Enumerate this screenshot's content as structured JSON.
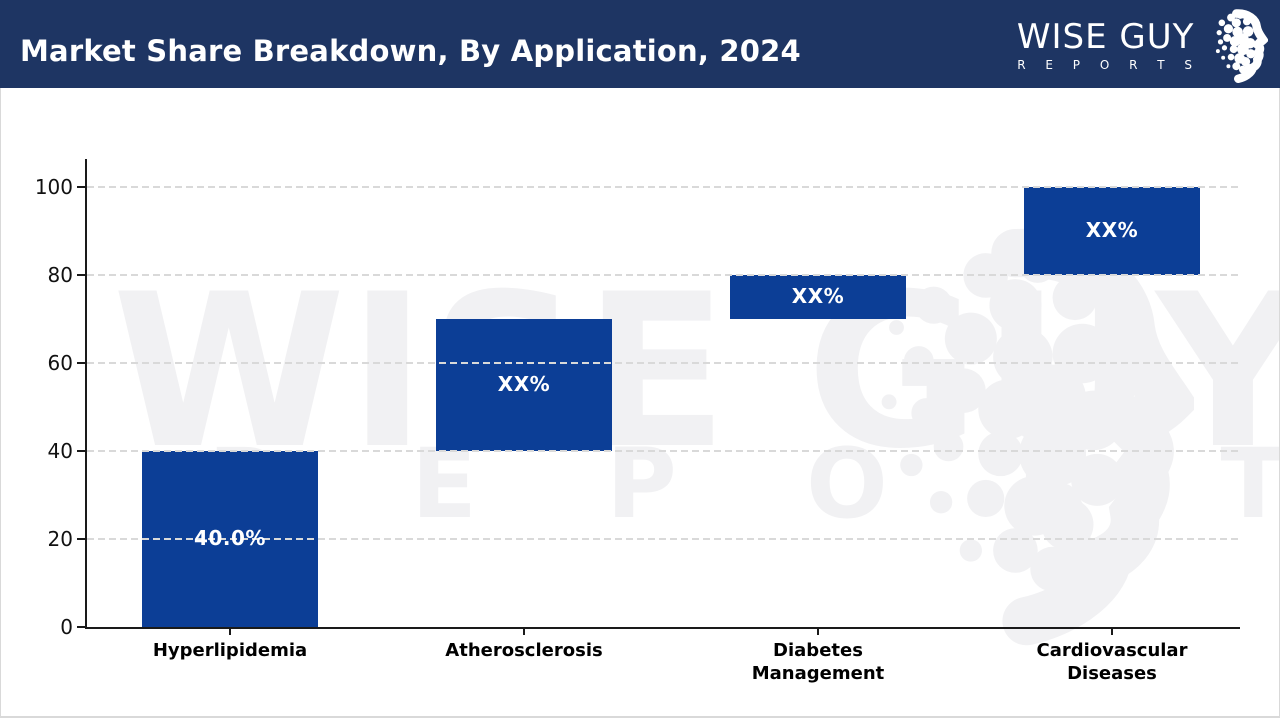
{
  "header": {
    "title": "Market Share Breakdown, By Application, 2024",
    "background": "#1e3563",
    "logo": {
      "line1": "WISE GUY",
      "line2": "R E P O R T S"
    }
  },
  "watermark": {
    "line1": "WISE GUY",
    "line2": "R E P O R T S"
  },
  "chart_data": {
    "type": "bar",
    "subtype": "floating-waterfall",
    "title": "Market Share Breakdown, By Application, 2024",
    "categories": [
      "Hyperlipidemia",
      "Atherosclerosis",
      "Diabetes\nManagement",
      "Cardiovascular\nDiseases"
    ],
    "bars": [
      {
        "category": "Hyperlipidemia",
        "start": 0,
        "end": 40,
        "label": "40.0%"
      },
      {
        "category": "Atherosclerosis",
        "start": 40,
        "end": 70,
        "label": "XX%"
      },
      {
        "category": "Diabetes Management",
        "start": 70,
        "end": 80,
        "label": "XX%"
      },
      {
        "category": "Cardiovascular Diseases",
        "start": 80,
        "end": 100,
        "label": "XX%"
      }
    ],
    "ylim": [
      0,
      100
    ],
    "yticks": [
      0,
      20,
      40,
      60,
      80,
      100
    ],
    "xlabel": "",
    "ylabel": "",
    "grid": "horizontal-dashed",
    "legend": "none",
    "bar_color": "#0c3e96",
    "bar_label_color": "#ffffff",
    "axis_color": "#1a1a1a",
    "grid_color": "#d9d9d9"
  }
}
